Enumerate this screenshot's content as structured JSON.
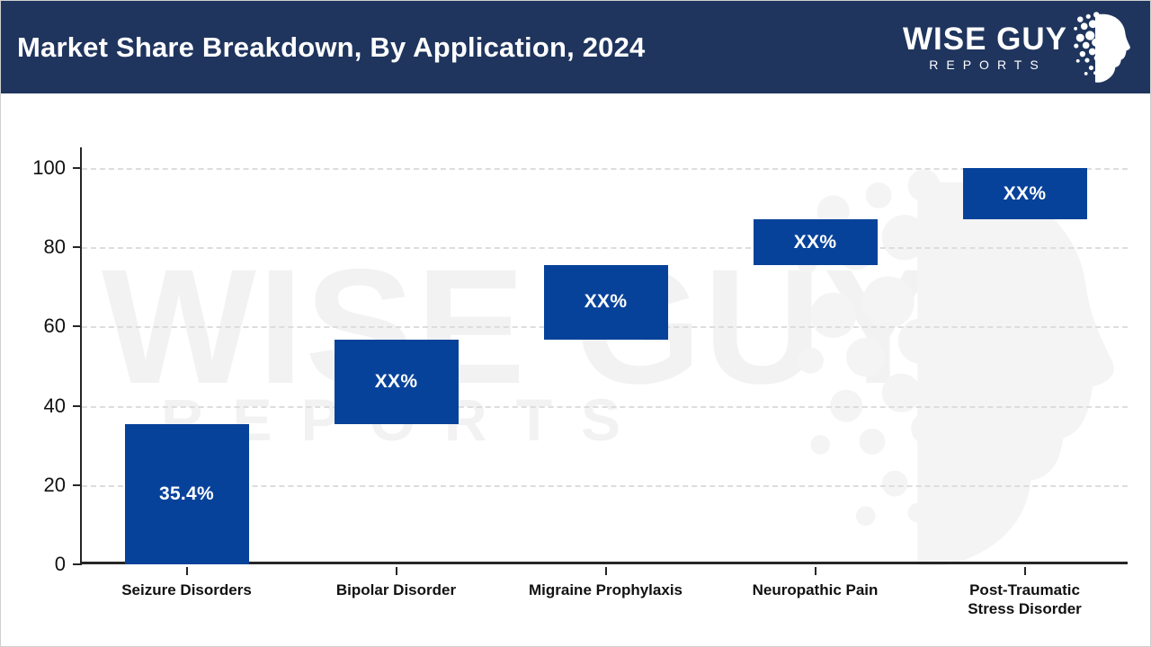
{
  "header": {
    "title": "Market Share Breakdown, By Application, 2024"
  },
  "brand": {
    "name": "WISE GUY",
    "sub": "REPORTS"
  },
  "watermark": {
    "line1": "WISE GUY",
    "line2": "REPORTS"
  },
  "chart_data": {
    "type": "bar",
    "subtype": "floating-waterfall",
    "title": "Market Share Breakdown, By Application, 2024",
    "categories": [
      "Seizure Disorders",
      "Bipolar Disorder",
      "Migraine Prophylaxis",
      "Neuropathic Pain",
      "Post-Traumatic Stress Disorder"
    ],
    "segments": [
      {
        "category": "Seizure Disorders",
        "start": 0,
        "end": 35.4,
        "label": "35.4%"
      },
      {
        "category": "Bipolar Disorder",
        "start": 35.4,
        "end": 56.7,
        "label": "XX%"
      },
      {
        "category": "Migraine Prophylaxis",
        "start": 56.7,
        "end": 75.5,
        "label": "XX%"
      },
      {
        "category": "Neuropathic Pain",
        "start": 75.5,
        "end": 87,
        "label": "XX%"
      },
      {
        "category": "Post-Traumatic Stress Disorder",
        "start": 87,
        "end": 100,
        "label": "XX%"
      }
    ],
    "xlabel": "",
    "ylabel": "",
    "yticks": [
      0,
      20,
      40,
      60,
      80,
      100
    ],
    "ylim": [
      0,
      105
    ],
    "grid": "dashed-horizontal",
    "legend": "none",
    "colors": {
      "bar": "#07429a",
      "grid": "#dddddd",
      "axis": "#262626",
      "value_label": "#ffffff"
    }
  },
  "colors": {
    "header_bg": "#1f355e",
    "page_bg": "#ffffff",
    "watermark": "#f2f2f2"
  }
}
